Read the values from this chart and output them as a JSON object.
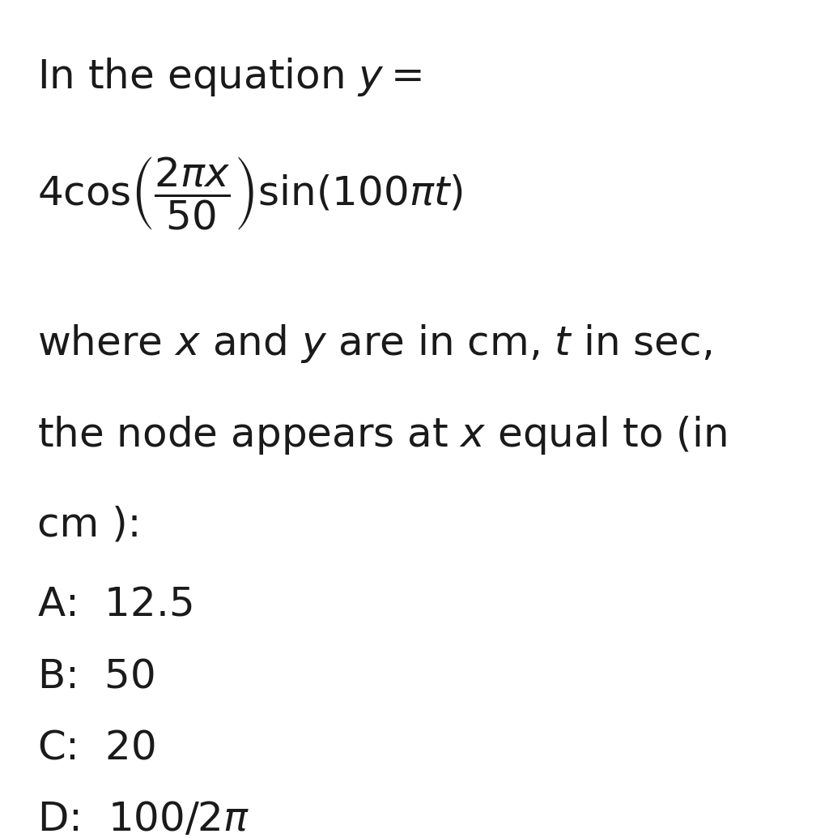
{
  "background_color": "#ffffff",
  "text_color": "#1a1a1a",
  "figsize": [
    10.24,
    10.34
  ],
  "dpi": 100,
  "line1": "In the equation $y =$",
  "line2_left": "$4 \\cos$",
  "line2_frac_num": "$2\\pi x$",
  "line2_frac_den": "$50$",
  "line2_right": "$\\sin(100\\pi t)$",
  "line3": "where $x$ and $y$ are in cm, $t$ in sec,",
  "line4": "the node appears at $x$ equal to (in",
  "line5": "cm ):",
  "optionA": "A:  $12.5$",
  "optionB": "B:  $50$",
  "optionC": "C:  $20$",
  "optionD": "D:  $100/2\\pi$",
  "font_size_main": 36,
  "font_size_options": 36
}
